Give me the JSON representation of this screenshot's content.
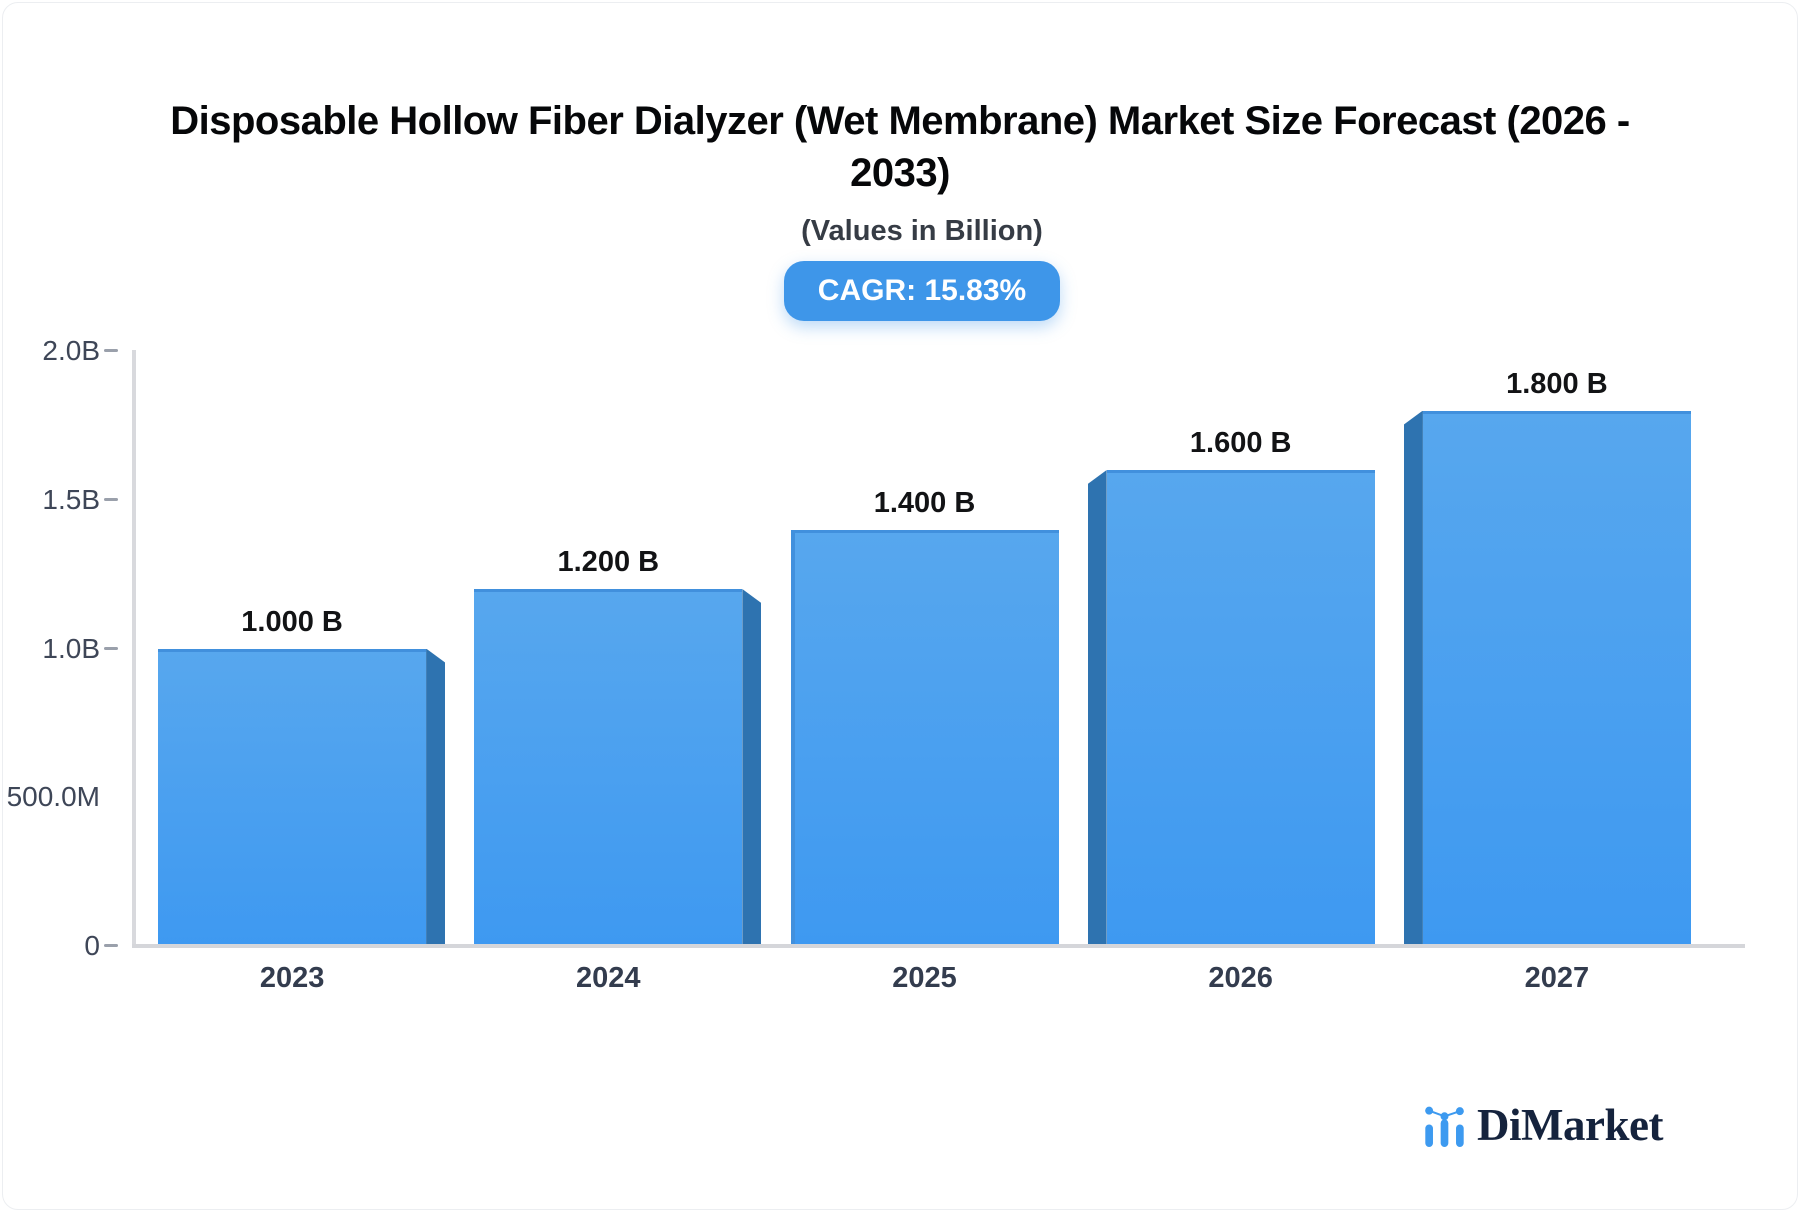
{
  "chart_data": {
    "type": "bar",
    "title": "Disposable Hollow Fiber Dialyzer (Wet Membrane) Market Size Forecast (2026 - 2033)",
    "title_line1": "Disposable Hollow Fiber Dialyzer (Wet Membrane) Market Size Forecast (2026 -",
    "title_line2": "2033)",
    "subtitle": "(Values in Billion)",
    "badge_label": "CAGR: 15.83%",
    "cagr_percent": 15.83,
    "categories": [
      "2023",
      "2024",
      "2025",
      "2026",
      "2027"
    ],
    "values": [
      1.0,
      1.2,
      1.4,
      1.6,
      1.8
    ],
    "value_labels": [
      "1.000 B",
      "1.200 B",
      "1.400 B",
      "1.600 B",
      "1.800 B"
    ],
    "ylim": [
      0,
      2.0
    ],
    "yticks": [
      {
        "label": "2.0B",
        "value": 2.0,
        "dash": true
      },
      {
        "label": "1.5B",
        "value": 1.5,
        "dash": true
      },
      {
        "label": "1.0B",
        "value": 1.0,
        "dash": true
      },
      {
        "label": "500.0M",
        "value": 0.5,
        "dash": false
      },
      {
        "label": "0",
        "value": 0.0,
        "dash": true
      }
    ],
    "depth_side": [
      "right",
      "right",
      "none",
      "left",
      "left"
    ],
    "grid": false,
    "legend": false
  },
  "colors": {
    "badge_accent": "#3e96e9",
    "bar_face_top": "#57a7ee",
    "bar_face_bottom": "#3e99f1",
    "bar_edge": "#4190dd",
    "bar_side": "#2e73b0",
    "axis_line": "#d8d9dd",
    "tick_dash": "#9aa0ab",
    "logo_blue": "#3d9af0",
    "logo_navy": "#15233d"
  },
  "footer": {
    "logo_text": "DiMarket"
  }
}
